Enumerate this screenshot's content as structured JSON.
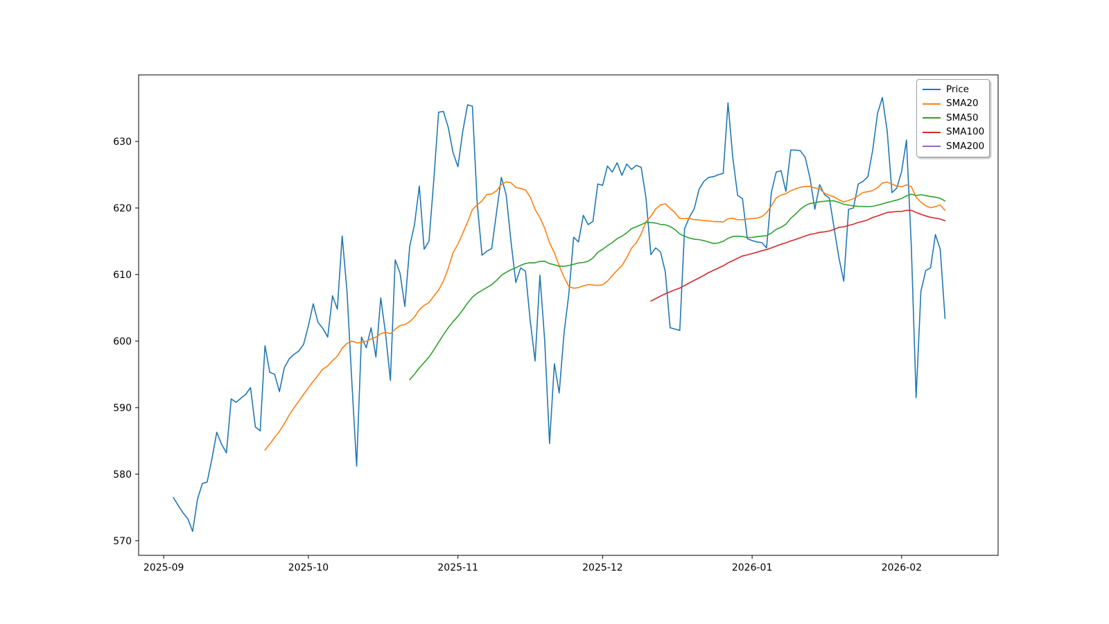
{
  "figure": {
    "background": "#ffffff",
    "spine_color": "#000000",
    "tick_color": "#000000"
  },
  "chart_data": {
    "type": "line",
    "title": "",
    "xlabel": "",
    "ylabel": "",
    "grid": false,
    "x_axis": {
      "kind": "date",
      "start_date": "2025-09-03",
      "end_date": "2026-02-10",
      "frequency": "daily",
      "tick_labels": [
        "2025-09",
        "2025-10",
        "2025-11",
        "2025-12",
        "2026-01",
        "2026-02"
      ],
      "tick_day_offsets": [
        -2,
        28,
        59,
        89,
        120,
        151
      ],
      "domain_day_offsets": [
        -7.2,
        171.0
      ]
    },
    "y_axis": {
      "tick_labels": [
        "570",
        "580",
        "590",
        "600",
        "610",
        "620",
        "630"
      ],
      "tick_values": [
        570,
        580,
        590,
        600,
        610,
        620,
        630
      ],
      "range": [
        567.8,
        640.0
      ]
    },
    "series": [
      {
        "name": "Price",
        "color": "#1f77b4",
        "values": [
          576.5,
          575.3,
          574.2,
          573.3,
          571.4,
          576.2,
          578.6,
          578.8,
          582.3,
          586.3,
          584.5,
          583.2,
          591.3,
          590.8,
          591.4,
          592.0,
          593.0,
          587.1,
          586.5,
          599.3,
          595.3,
          595.0,
          592.4,
          596.0,
          597.3,
          598.0,
          598.5,
          599.5,
          602.3,
          605.6,
          602.8,
          601.9,
          600.6,
          606.8,
          604.8,
          615.8,
          607.5,
          594.0,
          581.2,
          600.6,
          599.0,
          602.0,
          597.6,
          606.5,
          601.1,
          594.1,
          612.2,
          610.2,
          605.2,
          614.2,
          617.5,
          623.3,
          613.8,
          615.0,
          624.2,
          634.4,
          634.5,
          632.1,
          628.3,
          626.2,
          631.5,
          635.5,
          635.3,
          620.7,
          612.9,
          613.5,
          613.9,
          619.3,
          624.6,
          622.0,
          615.0,
          608.8,
          611.0,
          610.5,
          603.0,
          597.0,
          609.9,
          600.0,
          584.6,
          596.6,
          592.2,
          601.2,
          607.1,
          615.6,
          614.9,
          618.9,
          617.5,
          618.0,
          623.6,
          623.4,
          626.3,
          625.4,
          626.8,
          624.9,
          626.6,
          625.8,
          626.4,
          626.1,
          621.5,
          613.0,
          614.0,
          613.4,
          610.4,
          602.0,
          601.8,
          601.6,
          616.9,
          618.6,
          619.9,
          622.8,
          624.0,
          624.6,
          624.7,
          625.0,
          625.2,
          635.8,
          627.5,
          621.9,
          621.4,
          615.4,
          615.1,
          614.9,
          614.8,
          614.0,
          622.4,
          625.4,
          625.6,
          622.5,
          628.7,
          628.7,
          628.6,
          627.6,
          624.5,
          619.8,
          623.5,
          622.0,
          621.5,
          617.0,
          612.5,
          609.0,
          619.8,
          620.0,
          623.6,
          624.0,
          624.7,
          628.7,
          634.2,
          636.6,
          631.6,
          622.3,
          623.0,
          625.5,
          630.2,
          614.4,
          591.5,
          607.5,
          610.6,
          611.0,
          616.0,
          613.8,
          603.4
        ]
      },
      {
        "name": "SMA20",
        "color": "#ff7f0e",
        "derived": "rolling_mean_of_price",
        "window": 20
      },
      {
        "name": "SMA50",
        "color": "#2ca02c",
        "derived": "rolling_mean_of_price",
        "window": 50
      },
      {
        "name": "SMA100",
        "color": "#d62728",
        "derived": "rolling_mean_of_price",
        "window": 100
      },
      {
        "name": "SMA200",
        "color": "#9467bd",
        "derived": "rolling_mean_of_price",
        "window": 200
      }
    ],
    "legend": {
      "position": "upper right",
      "entries": [
        "Price",
        "SMA20",
        "SMA50",
        "SMA100",
        "SMA200"
      ]
    }
  }
}
